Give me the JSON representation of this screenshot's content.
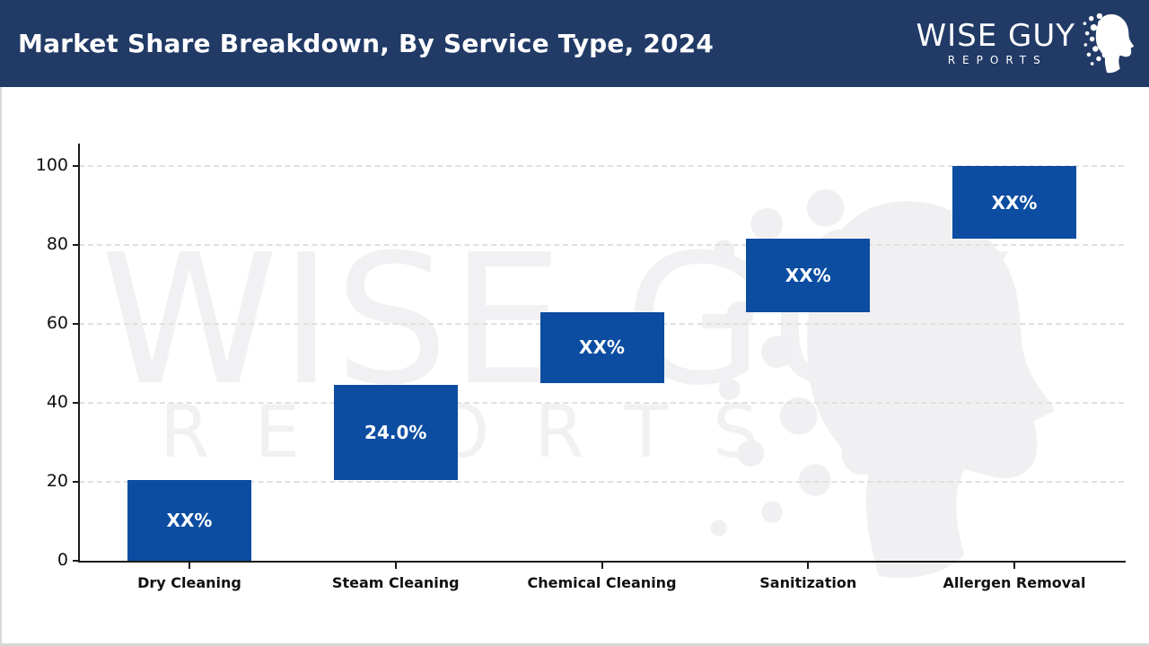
{
  "header": {
    "title": "Market Share Breakdown, By Service Type, 2024",
    "logo": {
      "name": "WISE GUY",
      "subtitle": "REPORTS"
    }
  },
  "watermark": {
    "name": "WISE GUY",
    "subtitle": "REPORTS"
  },
  "chart_data": {
    "type": "bar",
    "subtype": "waterfall (floating cumulative bars)",
    "title": "Market Share Breakdown, By Service Type, 2024",
    "categories": [
      "Dry Cleaning",
      "Steam Cleaning",
      "Chemical Cleaning",
      "Sanitization",
      "Allergen Removal"
    ],
    "segments": [
      {
        "category": "Dry Cleaning",
        "start": 0,
        "end": 20.5,
        "label": "XX%",
        "value": null
      },
      {
        "category": "Steam Cleaning",
        "start": 20.5,
        "end": 44.5,
        "label": "24.0%",
        "value": 24.0
      },
      {
        "category": "Chemical Cleaning",
        "start": 45,
        "end": 63,
        "label": "XX%",
        "value": null
      },
      {
        "category": "Sanitization",
        "start": 63,
        "end": 81.5,
        "label": "XX%",
        "value": null
      },
      {
        "category": "Allergen Removal",
        "start": 81.5,
        "end": 100,
        "label": "XX%",
        "value": null
      }
    ],
    "xlabel": "",
    "ylabel": "",
    "yticks": [
      0,
      20,
      40,
      60,
      80,
      100
    ],
    "ylim": [
      0,
      105.7
    ],
    "grid": true,
    "gridline_style": "dashed",
    "gridline_color": "#e0e0e0",
    "bar_color": "#0C4DA1",
    "bar_label_color": "#ffffff",
    "axis_color": "#1a1a1a",
    "legend_position": "none"
  }
}
